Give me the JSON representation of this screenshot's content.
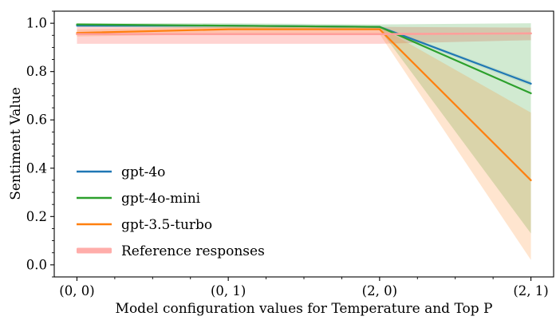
{
  "figure": {
    "background": "#ffffff",
    "axis_color": "#000000",
    "text_color": "#000000"
  },
  "chart_data": {
    "type": "line",
    "title": "",
    "xlabel": "Model configuration values for Temperature and Top P",
    "ylabel": "Sentiment Value",
    "categories": [
      "(0, 0)",
      "(0, 1)",
      "(2, 0)",
      "(2, 1)"
    ],
    "x_positions": [
      0,
      1,
      2,
      3
    ],
    "ylim": [
      -0.05,
      1.05
    ],
    "yticks": [
      0.0,
      0.2,
      0.4,
      0.6,
      0.8,
      1.0
    ],
    "ytick_labels": [
      "0.0",
      "0.2",
      "0.4",
      "0.6",
      "0.8",
      "1.0"
    ],
    "y_minor_step": 0.05,
    "x_minor_step": 0.25,
    "grid": false,
    "legend": {
      "position": "lower left",
      "entries": [
        "gpt-4o",
        "gpt-4o-mini",
        "gpt-3.5-turbo",
        "Reference responses"
      ]
    },
    "series": [
      {
        "name": "gpt-4o",
        "color": "#1f77b4",
        "style": "line",
        "values": [
          0.99,
          0.99,
          0.985,
          0.75
        ],
        "band_lo": [
          0.985,
          0.985,
          0.98,
          0.74
        ],
        "band_hi": [
          0.995,
          0.995,
          0.99,
          0.76
        ],
        "band_opacity": 0.1
      },
      {
        "name": "gpt-4o-mini",
        "color": "#2ca02c",
        "style": "line",
        "values": [
          0.995,
          0.99,
          0.985,
          0.71
        ],
        "band_lo": [
          0.985,
          0.98,
          0.975,
          0.13
        ],
        "band_hi": [
          1.0,
          1.0,
          0.995,
          1.0
        ],
        "band_opacity": 0.22
      },
      {
        "name": "gpt-3.5-turbo",
        "color": "#ff7f0e",
        "style": "line",
        "values": [
          0.96,
          0.975,
          0.975,
          0.35
        ],
        "band_lo": [
          0.945,
          0.955,
          0.955,
          0.02
        ],
        "band_hi": [
          0.975,
          0.985,
          0.985,
          0.63
        ],
        "band_opacity": 0.2
      },
      {
        "name": "Reference responses",
        "color": "#ff9f9b",
        "style": "band",
        "values": [
          0.955,
          0.955,
          0.955,
          0.958
        ],
        "band_lo": [
          0.915,
          0.915,
          0.915,
          0.93
        ],
        "band_hi": [
          0.985,
          0.985,
          0.985,
          0.982
        ],
        "band_opacity": 0.45
      }
    ]
  }
}
